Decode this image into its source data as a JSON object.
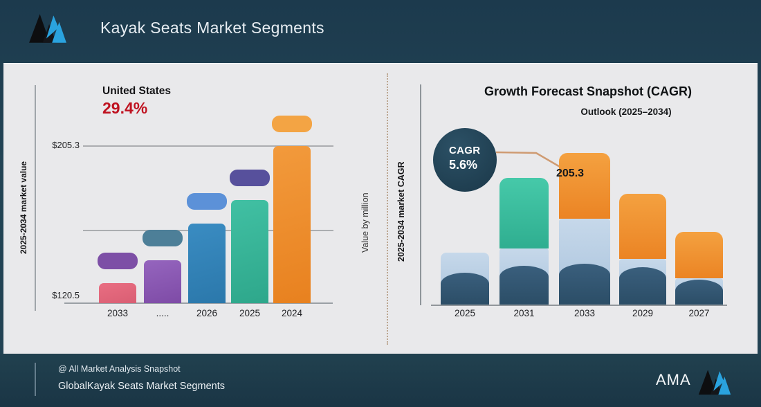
{
  "header": {
    "title": "Kayak Seats Market Segments",
    "logo": "AMA mountain logo"
  },
  "left_chart": {
    "region_label": "United States",
    "highlight_value": "29.4%",
    "highlight_color": "#bf1220",
    "y_axis_title": "2025-2034 market value",
    "ytick_top": "$205.3",
    "ytick_bottom": "$120.5",
    "bars": [
      {
        "label": "2033",
        "color_top": "#e96e82",
        "color_bottom": "#d95e73",
        "cap_color": "#7d4fa6"
      },
      {
        "label": ".....",
        "color_top": "#9565be",
        "color_bottom": "#7e4ba6",
        "cap_color": "#4d7f98"
      },
      {
        "label": "2026",
        "color_top": "#3a8cc2",
        "color_bottom": "#2b78ab",
        "cap_color": "#5c91d8"
      },
      {
        "label": "2025",
        "color_top": "#41c0a3",
        "color_bottom": "#2ea78b",
        "cap_color": "#57509c"
      },
      {
        "label": "2024",
        "color_top": "#f29a3c",
        "color_bottom": "#e8811f",
        "cap_color": "#f3a444"
      }
    ]
  },
  "middle_label": "Value by million",
  "right_chart": {
    "title": "Growth Forecast Snapshot (CAGR)",
    "subtitle": "Outlook (2025–2034)",
    "y_axis_title": "2025-2034 market CAGR",
    "badge": {
      "label": "CAGR",
      "value": "5.6%"
    },
    "annotation": {
      "text": "205.3",
      "target": "2033"
    },
    "colors": {
      "base": "#30536e",
      "mid": "#b6cde4",
      "teal": "#3abf9f",
      "orange": "#f0922f"
    }
  },
  "footer": {
    "line1": "@ All Market Analysis Snapshot",
    "line2": "GlobalKayak Seats Market Segments",
    "brand": "AMA"
  },
  "chart_data": [
    {
      "type": "bar",
      "title": "United States 29.4%",
      "categories": [
        "2033",
        ".....",
        "2026",
        "2025",
        "2024"
      ],
      "values": [
        131.3,
        143.7,
        163.5,
        176.2,
        205.3
      ],
      "ylabel": "2025-2034 market value",
      "yticks": [
        120.5,
        205.3
      ],
      "ylim": [
        120.5,
        215
      ],
      "grid": true,
      "legend": false
    },
    {
      "type": "bar",
      "subtype": "stacked",
      "title": "Growth Forecast Snapshot (CAGR)",
      "subtitle": "Outlook (2025–2034)",
      "categories": [
        "2025",
        "2031",
        "2033",
        "2029",
        "2027"
      ],
      "series": [
        {
          "name": "base segment (navy)",
          "values": [
            31.7,
            41.1,
            43.9,
            39.2,
            22.4
          ]
        },
        {
          "name": "mid segment (light blue)",
          "values": [
            39.2,
            35.5,
            72.8,
            23.3,
            14.0
          ]
        },
        {
          "name": "top segment (teal/orange)",
          "values": [
            0,
            95.2,
            88.6,
            87.7,
            62.5
          ]
        }
      ],
      "top_segment_color_by_bar": [
        null,
        "teal",
        "orange",
        "orange",
        "orange"
      ],
      "totals": [
        70.9,
        171.8,
        205.3,
        150.2,
        98.9
      ],
      "annotations": [
        {
          "text": "205.3",
          "category": "2033"
        },
        {
          "text": "CAGR 5.6%",
          "type": "badge"
        }
      ],
      "ylabel": "2025-2034 market CAGR",
      "grid": false,
      "legend": false
    }
  ]
}
